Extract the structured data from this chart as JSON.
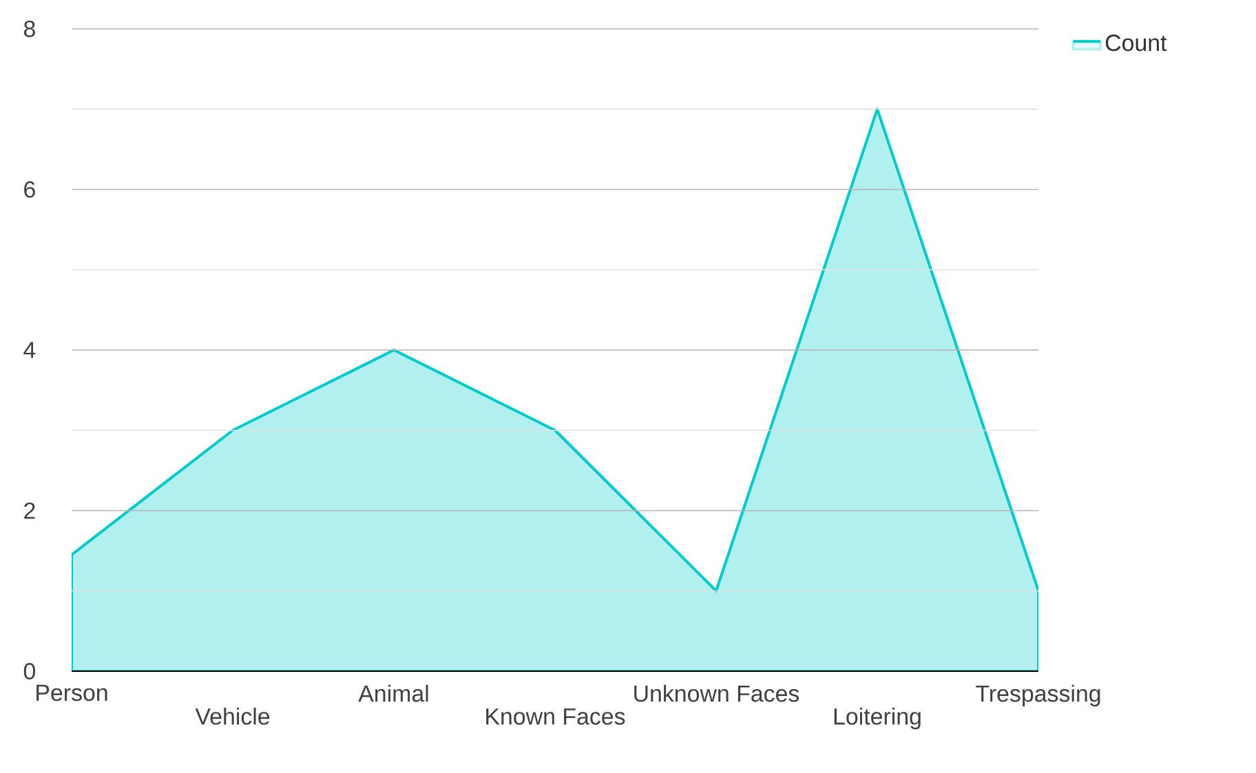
{
  "chart_data": {
    "type": "area",
    "categories": [
      "Person",
      "Vehicle",
      "Animal",
      "Known Faces",
      "Unknown Faces",
      "Loitering",
      "Trespassing"
    ],
    "series": [
      {
        "name": "Count",
        "color": "#00cccc",
        "values": [
          1.45,
          3,
          4,
          3,
          1,
          7,
          1
        ]
      }
    ],
    "ylim": [
      0,
      8
    ],
    "yticks": [
      0,
      2,
      4,
      6,
      8
    ],
    "grid": "y",
    "legend": "top right"
  }
}
